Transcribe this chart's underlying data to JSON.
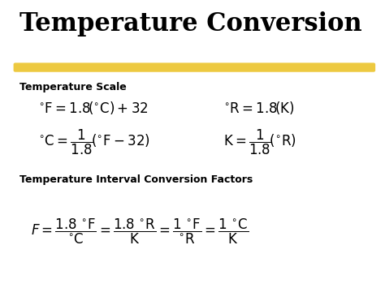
{
  "title": "Temperature Conversion",
  "title_fontsize": 22,
  "highlight_color": "#E8B800",
  "highlight_alpha": 0.75,
  "bg_color": "#FFFFFF",
  "text_color": "#000000",
  "section1_label": "Temperature Scale",
  "section1_fontsize": 9,
  "section2_label": "Temperature Interval Conversion Factors",
  "section2_fontsize": 9,
  "eq_fontsize": 12
}
